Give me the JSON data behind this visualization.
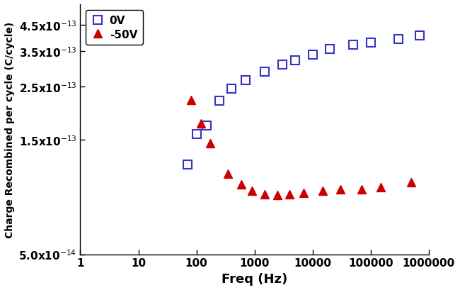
{
  "series_0V": {
    "label": "0V",
    "x": [
      70,
      100,
      150,
      250,
      400,
      700,
      1500,
      3000,
      5000,
      10000,
      20000,
      50000,
      100000,
      300000,
      700000
    ],
    "y": [
      1.18e-13,
      1.58e-13,
      1.72e-13,
      2.18e-13,
      2.45e-13,
      2.65e-13,
      2.88e-13,
      3.08e-13,
      3.22e-13,
      3.4e-13,
      3.58e-13,
      3.72e-13,
      3.82e-13,
      3.95e-13,
      4.08e-13
    ],
    "color": "#3333cc",
    "marker": "s",
    "markersize": 8,
    "markerfacecolor": "none",
    "markeredgewidth": 1.5
  },
  "series_m50V": {
    "label": "-50V",
    "x": [
      80,
      120,
      170,
      350,
      600,
      900,
      1500,
      2500,
      4000,
      7000,
      15000,
      30000,
      70000,
      150000,
      500000
    ],
    "y": [
      2.2e-13,
      1.75e-13,
      1.45e-13,
      1.08e-13,
      9.8e-14,
      9.2e-14,
      8.9e-14,
      8.8e-14,
      8.9e-14,
      9e-14,
      9.2e-14,
      9.3e-14,
      9.3e-14,
      9.5e-14,
      1e-13
    ],
    "color": "#cc0000",
    "marker": "^",
    "markersize": 9,
    "markerfacecolor": "#cc0000",
    "markeredgewidth": 1.0
  },
  "xlabel": "Freq (Hz)",
  "ylabel": "Charge Recombined per cycle (C/cycle)",
  "xlim": [
    1,
    1000000
  ],
  "ylim": [
    5e-14,
    5.5e-13
  ],
  "yticks": [
    5e-14,
    1.5e-13,
    2.5e-13,
    3.5e-13,
    4.5e-13
  ],
  "xticks": [
    1,
    10,
    100,
    1000,
    10000,
    100000,
    1000000
  ],
  "xtick_labels": [
    "1",
    "10",
    "100",
    "1000",
    "10000",
    "100000",
    "1000000"
  ],
  "legend_loc": "upper left",
  "bg_color": "#ffffff",
  "figsize": [
    6.5,
    4.1
  ],
  "dpi": 100
}
